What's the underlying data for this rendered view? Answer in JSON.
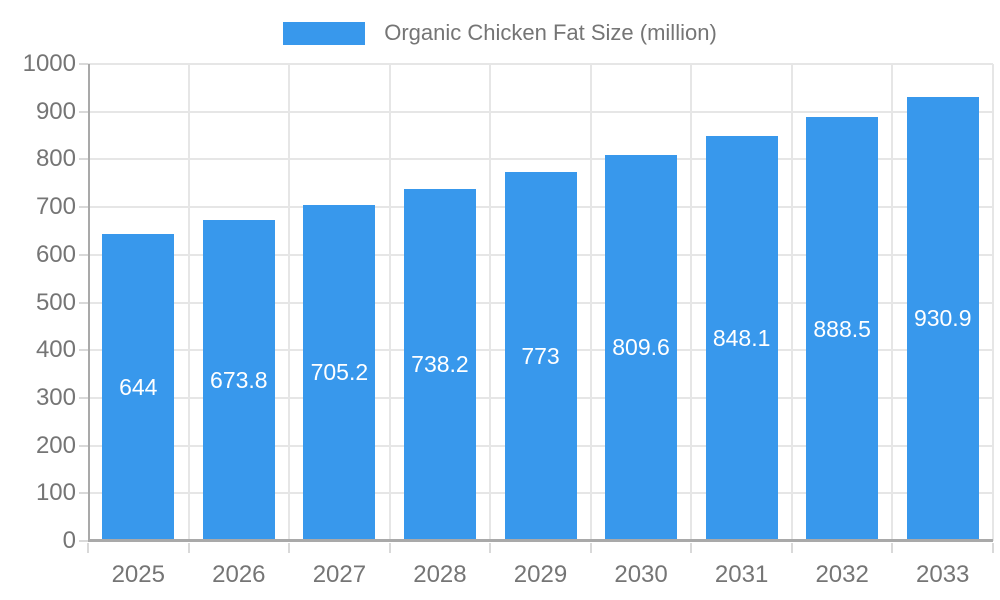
{
  "chart_data": {
    "type": "bar",
    "title": "Organic Chicken Fat Size (million)",
    "categories": [
      "2025",
      "2026",
      "2027",
      "2028",
      "2029",
      "2030",
      "2031",
      "2032",
      "2033"
    ],
    "values": [
      644,
      673.8,
      705.2,
      738.2,
      773,
      809.6,
      848.1,
      888.5,
      930.9
    ],
    "value_labels": [
      "644",
      "673.8",
      "705.2",
      "738.2",
      "773",
      "809.6",
      "848.1",
      "888.5",
      "930.9"
    ],
    "yticks": [
      0,
      100,
      200,
      300,
      400,
      500,
      600,
      700,
      800,
      900,
      1000
    ],
    "ylim": [
      0,
      1000
    ],
    "xlabel": "",
    "ylabel": "",
    "legend_position": "top",
    "grid": true,
    "colors": {
      "bar": "#3898EC",
      "grid": "#E6E6E6",
      "axis": "#A9A9A9",
      "tick": "#D9D9D9",
      "label_text": "#757575",
      "value_text": "#FFFFFF",
      "background": "#FFFFFF"
    }
  }
}
